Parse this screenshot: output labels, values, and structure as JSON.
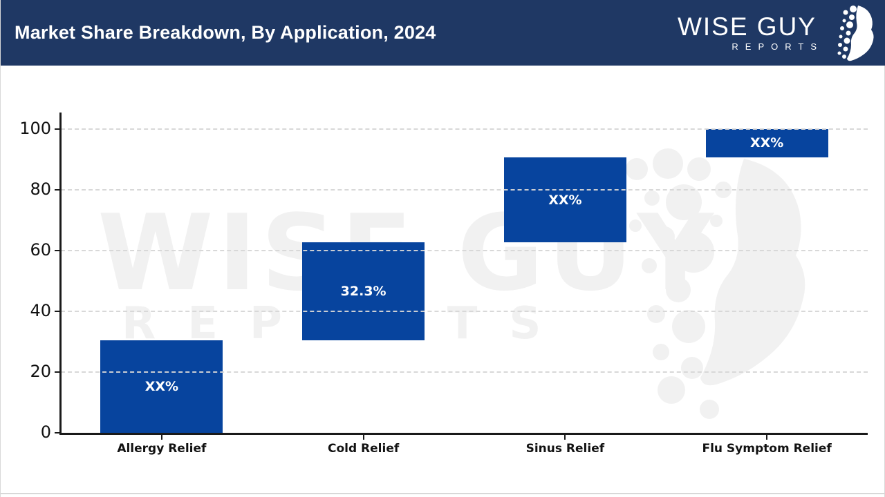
{
  "header": {
    "title": "Market Share Breakdown, By Application, 2024",
    "logo": {
      "line1": "WISE GUY",
      "line2": "REPORTS"
    }
  },
  "watermark": {
    "line1": "WISE GUY",
    "line2": "REPORTS"
  },
  "colors": {
    "header_bg": "#1F3864",
    "bar_blue": "#07449E",
    "grid_gray": "#D6D6D6",
    "axis_black": "#1A1A1A",
    "watermark_gray": "#F1F1F1",
    "bar_label_text": "#FFFFFF"
  },
  "chart_data": {
    "type": "bar",
    "subtype": "waterfall",
    "title": "Market Share Breakdown, By Application, 2024",
    "categories": [
      "Allergy Relief",
      "Cold Relief",
      "Sinus Relief",
      "Flu Symptom Relief"
    ],
    "bars": [
      {
        "category": "Allergy Relief",
        "start": 0,
        "end": 30.4,
        "label": "XX%"
      },
      {
        "category": "Cold Relief",
        "start": 30.4,
        "end": 62.7,
        "label": "32.3%"
      },
      {
        "category": "Sinus Relief",
        "start": 62.7,
        "end": 90.7,
        "label": "XX%"
      },
      {
        "category": "Flu Symptom Relief",
        "start": 90.7,
        "end": 100,
        "label": "XX%"
      }
    ],
    "yticks": [
      0,
      20,
      40,
      60,
      80,
      100
    ],
    "ylim": [
      0,
      105
    ],
    "xlabel": "",
    "ylabel": "",
    "grid": "horizontal-dashed",
    "legend": "none"
  }
}
